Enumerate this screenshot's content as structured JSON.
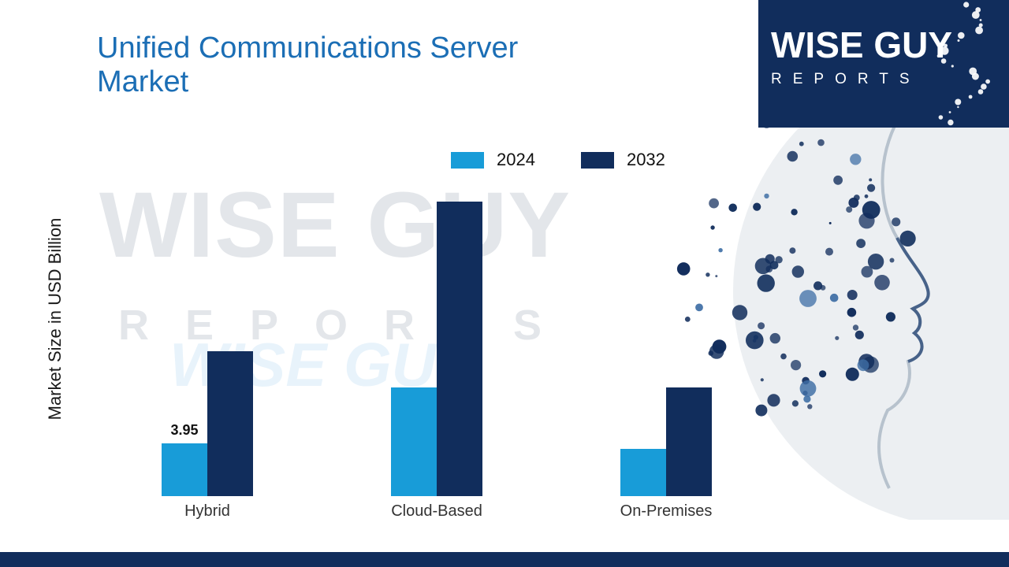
{
  "title": "Unified Communications Server Market",
  "brand": {
    "line1": "WISE GUY",
    "line2": "REPORTS"
  },
  "watermark": {
    "line1": "WISE GUY",
    "line2": "REPORTS",
    "ghost": "WISE GUY"
  },
  "colors": {
    "title_blue": "#1b6eb5",
    "accent_blue": "#189cd8",
    "navy": "#112d5c",
    "light_gray": "#eceff2",
    "text_dark": "#1a1a1a"
  },
  "chart_data": {
    "type": "bar",
    "title": "Unified Communications Server Market",
    "ylabel": "Market Size in USD Billion",
    "xlabel": "",
    "categories": [
      "Hybrid",
      "Cloud-Based",
      "On-Premises"
    ],
    "series": [
      {
        "name": "2024",
        "color": "#189cd8",
        "values": [
          3.95,
          8.1,
          3.5
        ]
      },
      {
        "name": "2032",
        "color": "#112d5c",
        "values": [
          10.8,
          22.0,
          8.1
        ]
      }
    ],
    "annotations": [
      {
        "series_index": 0,
        "category_index": 0,
        "text": "3.95"
      }
    ],
    "ylim": [
      0,
      24
    ],
    "grid": false,
    "legend_position": "top-center"
  }
}
